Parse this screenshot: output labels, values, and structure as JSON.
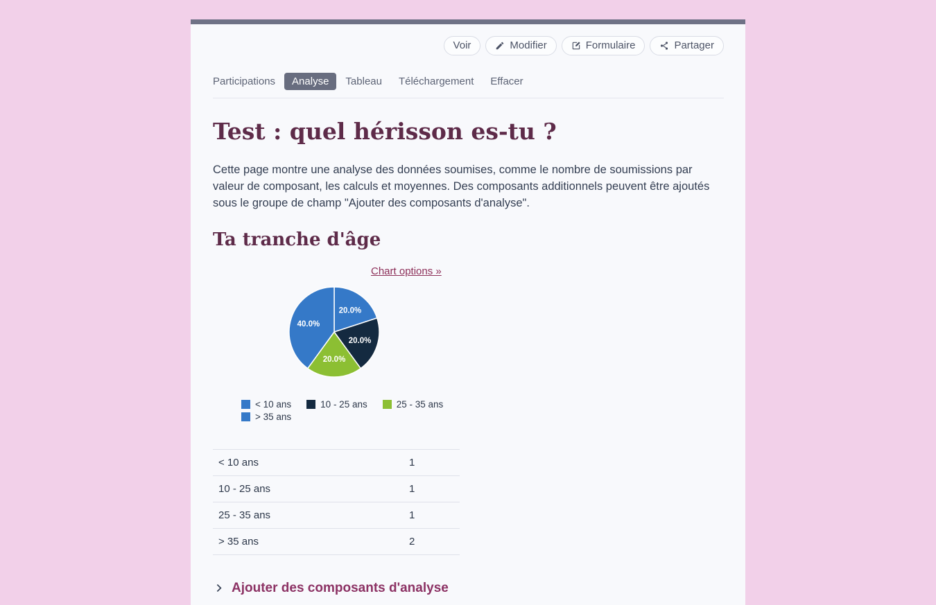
{
  "page": {
    "background_color": "#f2d0e9",
    "card_color": "#f8f9fc",
    "top_bar_color": "#6f7286"
  },
  "actions": {
    "voir_label": "Voir",
    "modifier_label": "Modifier",
    "formulaire_label": "Formulaire",
    "partager_label": "Partager"
  },
  "tabs": [
    {
      "label": "Participations",
      "active": false
    },
    {
      "label": "Analyse",
      "active": true
    },
    {
      "label": "Tableau",
      "active": false
    },
    {
      "label": "Téléchargement",
      "active": false
    },
    {
      "label": "Effacer",
      "active": false
    }
  ],
  "content": {
    "title": "Test : quel hérisson es-tu ?",
    "description": "Cette page montre une analyse des données soumises, comme le nombre de soumissions par valeur de composant, les calculs et moyennes. Des composants additionnels peuvent être ajoutés sous le groupe de champ \"Ajouter des composants d'analyse\".",
    "section_title": "Ta tranche d'âge",
    "chart_options_label": "Chart options »",
    "add_components_label": "Ajouter des composants d'analyse"
  },
  "chart_data": {
    "type": "pie",
    "title": "Ta tranche d'âge",
    "categories": [
      "< 10 ans",
      "10 - 25 ans",
      "25 - 35 ans",
      "> 35 ans"
    ],
    "values": [
      20,
      20,
      20,
      40
    ],
    "slice_labels": [
      "20.0%",
      "20.0%",
      "20.0%",
      "40.0%"
    ],
    "counts": [
      1,
      1,
      1,
      2
    ],
    "colors": [
      "#3579c8",
      "#142a40",
      "#8cbf33",
      "#3579c8"
    ],
    "start_angle_deg": 0,
    "direction": "clockwise",
    "legend_position": "bottom",
    "slice_border_color": "#ffffff"
  },
  "table": {
    "rows": [
      {
        "label": "< 10 ans",
        "value": "1"
      },
      {
        "label": "10 - 25 ans",
        "value": "1"
      },
      {
        "label": "25 - 35 ans",
        "value": "1"
      },
      {
        "label": "> 35 ans",
        "value": "2"
      }
    ]
  }
}
